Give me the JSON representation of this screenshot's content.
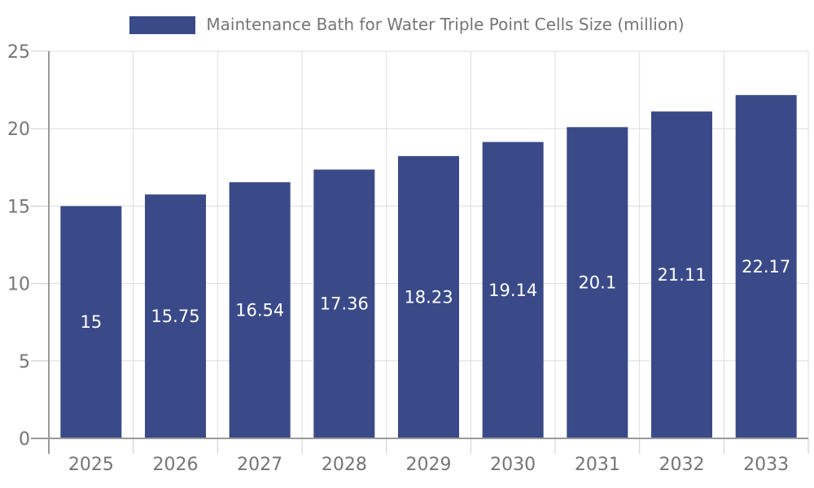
{
  "legend": {
    "label": "Maintenance Bath for Water Triple Point Cells Size (million)"
  },
  "chart_data": {
    "type": "bar",
    "title": "Maintenance Bath for Water Triple Point Cells Size (million)",
    "series_name": "Maintenance Bath for Water Triple Point Cells Size (million)",
    "categories": [
      "2025",
      "2026",
      "2027",
      "2028",
      "2029",
      "2030",
      "2031",
      "2032",
      "2033"
    ],
    "values": [
      15,
      15.75,
      16.54,
      17.36,
      18.23,
      19.14,
      20.1,
      21.11,
      22.17
    ],
    "value_labels": [
      "15",
      "15.75",
      "16.54",
      "17.36",
      "18.23",
      "19.14",
      "20.1",
      "21.11",
      "22.17"
    ],
    "xlabel": "",
    "ylabel": "",
    "ylim": [
      0,
      25
    ],
    "yticks": [
      0,
      5,
      10,
      15,
      20,
      25
    ],
    "grid": true,
    "legend_position": "top-center"
  },
  "colors": {
    "bar": "#3A4A89",
    "grid": "#DDDDDD",
    "tick_mark": "#CCCCCC",
    "axis_line": "#999999",
    "axis_label": "#757575",
    "value_label": "#FFFFFF",
    "background": "#FFFFFF"
  }
}
